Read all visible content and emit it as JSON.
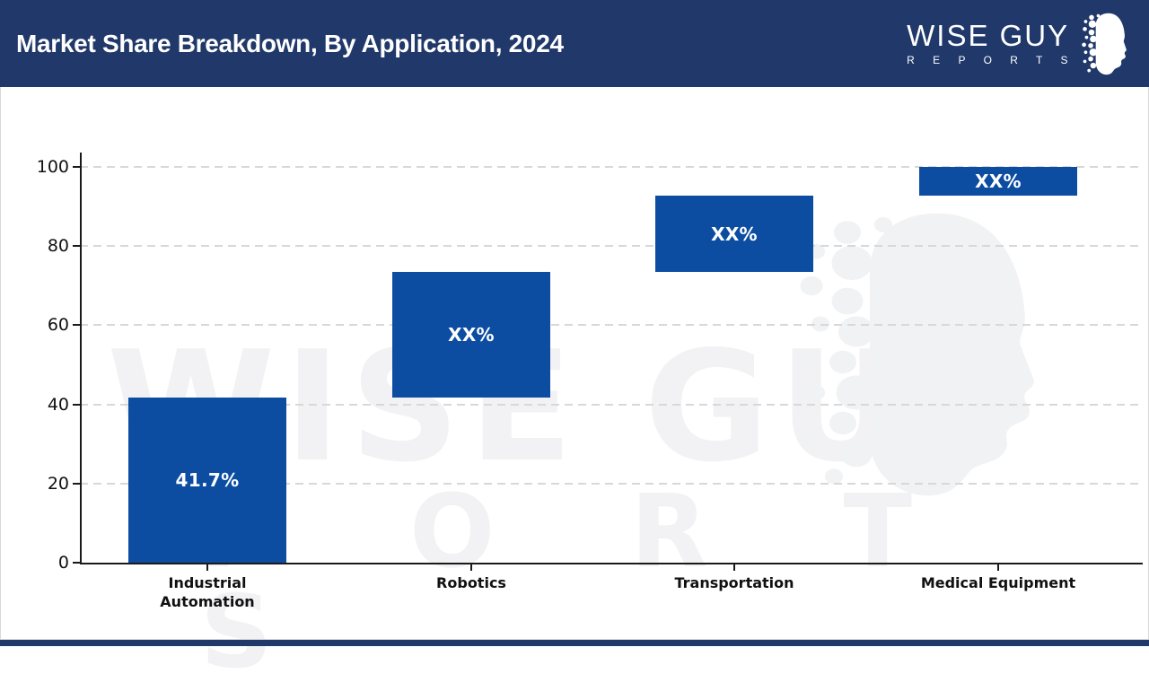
{
  "header": {
    "title": "Market Share Breakdown, By Application, 2024",
    "brand": {
      "line1": "WISE GUY",
      "line2": "R E P O R T S"
    }
  },
  "watermark": {
    "line1": "WISE GUY",
    "line2": "P O R T S"
  },
  "chart_data": {
    "type": "bar",
    "subtype": "waterfall",
    "title": "Market Share Breakdown, By Application, 2024",
    "categories": [
      "Industrial\nAutomation",
      "Robotics",
      "Transportation",
      "Medical Equipment"
    ],
    "segments": [
      {
        "category": "Industrial Automation",
        "start": 0,
        "end": 41.7,
        "value": 41.7,
        "label": "41.7%"
      },
      {
        "category": "Robotics",
        "start": 41.7,
        "end": 73.5,
        "value": 31.8,
        "label": "XX%"
      },
      {
        "category": "Transportation",
        "start": 73.5,
        "end": 92.7,
        "value": 19.2,
        "label": "XX%"
      },
      {
        "category": "Medical Equipment",
        "start": 92.7,
        "end": 100,
        "value": 7.3,
        "label": "XX%"
      }
    ],
    "ylim": [
      0,
      100
    ],
    "y_ticks": [
      0,
      20,
      40,
      60,
      80,
      100
    ],
    "grid": "horizontal-dashed",
    "legend": "none",
    "bar_color": "#0c4da2",
    "bar_label_color": "#ffffff",
    "axis_color": "#1a1a1a",
    "gridline_color": "#d8d8d8",
    "header_color": "#20386a",
    "watermark_color": "#f2f2f4"
  }
}
